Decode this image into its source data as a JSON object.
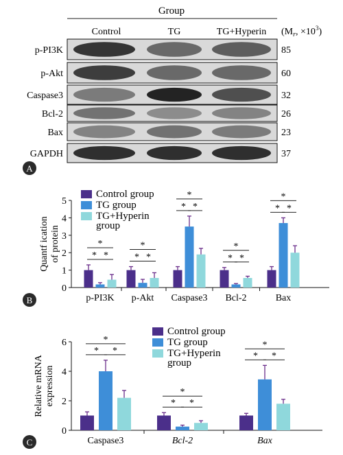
{
  "panel_a": {
    "header": "Group",
    "columns": [
      "Control",
      "TG",
      "TG+Hyperin"
    ],
    "unit_label": "(M",
    "unit_sub": "r",
    "unit_tail": ", ×10",
    "unit_sup": "3",
    "unit_close": ")",
    "rows": [
      {
        "label": "p-PI3K",
        "mw": "85",
        "intensity": [
          0.85,
          0.55,
          0.62
        ]
      },
      {
        "label": "p-Akt",
        "mw": "60",
        "intensity": [
          0.8,
          0.55,
          0.55
        ]
      },
      {
        "label": "Caspase3",
        "mw": "32",
        "intensity": [
          0.45,
          0.95,
          0.7
        ]
      },
      {
        "label": "Bcl-2",
        "mw": "26",
        "intensity": [
          0.5,
          0.35,
          0.4
        ]
      },
      {
        "label": "Bax",
        "mw": "23",
        "intensity": [
          0.4,
          0.5,
          0.45
        ]
      },
      {
        "label": "GAPDH",
        "mw": "37",
        "intensity": [
          0.88,
          0.88,
          0.88
        ]
      }
    ],
    "badge": "A"
  },
  "chart_data": [
    {
      "type": "bar",
      "panel": "B",
      "ylabel": "Quantf ication of protein",
      "ylim": [
        0,
        5
      ],
      "yticks": [
        "0",
        "1",
        "2",
        "3",
        "4",
        "5"
      ],
      "categories": [
        "p-PI3K",
        "p-Akt",
        "Caspase3",
        "Bcl-2",
        "Bax"
      ],
      "series": [
        {
          "name": "Control group",
          "values": [
            1.0,
            1.0,
            1.0,
            1.0,
            1.0
          ],
          "errors": [
            0.3,
            0.2,
            0.2,
            0.15,
            0.2
          ]
        },
        {
          "name": "TG group",
          "values": [
            0.18,
            0.27,
            3.5,
            0.18,
            3.7
          ],
          "errors": [
            0.1,
            0.2,
            0.6,
            0.05,
            0.3
          ]
        },
        {
          "name": "TG+Hyperin group",
          "values": [
            0.45,
            0.55,
            1.9,
            0.55,
            2.0
          ],
          "errors": [
            0.3,
            0.3,
            0.35,
            0.1,
            0.4
          ]
        }
      ],
      "significance": "*",
      "legend": "top-left"
    },
    {
      "type": "bar",
      "panel": "C",
      "ylabel": "Relative mRNA expression",
      "ylim": [
        0,
        6
      ],
      "yticks": [
        "0",
        "2",
        "4",
        "6"
      ],
      "categories": [
        "Caspase3",
        "Bcl-2",
        "Bax"
      ],
      "category_italic": [
        false,
        true,
        true
      ],
      "series": [
        {
          "name": "Control group",
          "values": [
            1.0,
            1.0,
            1.0
          ],
          "errors": [
            0.25,
            0.2,
            0.15
          ]
        },
        {
          "name": "TG group",
          "values": [
            4.0,
            0.25,
            3.45
          ],
          "errors": [
            0.75,
            0.1,
            0.95
          ]
        },
        {
          "name": "TG+Hyperin group",
          "values": [
            2.2,
            0.5,
            1.8
          ],
          "errors": [
            0.5,
            0.15,
            0.3
          ]
        }
      ],
      "significance": "*",
      "legend": "top-center"
    }
  ],
  "badges": {
    "b": "B",
    "c": "C"
  },
  "colors": {
    "control": "#4b2f8a",
    "tg": "#3e8ed8",
    "hyperin": "#8fd8dc",
    "badge": "#2a2a2a"
  }
}
